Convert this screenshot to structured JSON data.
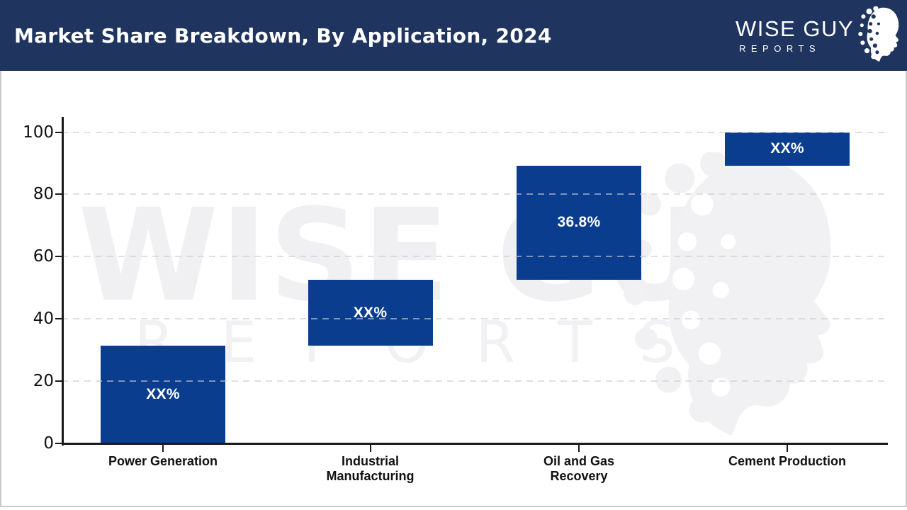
{
  "header": {
    "title": "Market Share Breakdown, By Application, 2024"
  },
  "logo": {
    "line1": "WISE GUY",
    "line2": "REPORTS"
  },
  "watermark": {
    "line1": "WISE GUY",
    "line2": "REPORTS"
  },
  "chart_data": {
    "type": "bar",
    "subtype": "stacked-waterfall",
    "title": "Market Share Breakdown, By Application, 2024",
    "categories": [
      "Power Generation",
      "Industrial Manufacturing",
      "Oil and Gas Recovery",
      "Cement Production"
    ],
    "category_label_lines": [
      [
        "Power Generation"
      ],
      [
        "Industrial",
        "Manufacturing"
      ],
      [
        "Oil and Gas",
        "Recovery"
      ],
      [
        "Cement Production"
      ]
    ],
    "segments": [
      {
        "category": "Power Generation",
        "start": 0,
        "end": 31.4,
        "value": 31.4,
        "label": "XX%"
      },
      {
        "category": "Industrial Manufacturing",
        "start": 31.4,
        "end": 52.5,
        "value": 21.1,
        "label": "XX%"
      },
      {
        "category": "Oil and Gas Recovery",
        "start": 52.5,
        "end": 89.3,
        "value": 36.8,
        "label": "36.8%"
      },
      {
        "category": "Cement Production",
        "start": 89.3,
        "end": 100,
        "value": 10.7,
        "label": "XX%"
      }
    ],
    "xlabel": "",
    "ylabel": "",
    "ylim": [
      0,
      100
    ],
    "yticks": [
      0,
      20,
      40,
      60,
      80,
      100
    ],
    "grid": "horizontal-dashed",
    "legend": "none",
    "bar_color": "#0b3d8e",
    "bar_label_color": "#ffffff"
  },
  "colors": {
    "header_bg": "#1f3560",
    "bar": "#0b3d8e",
    "axis": "#1a1a1a",
    "grid_dash": "#e1e2e4",
    "watermark": "#f0f0f2",
    "panel_border": "#c9c9ce"
  }
}
